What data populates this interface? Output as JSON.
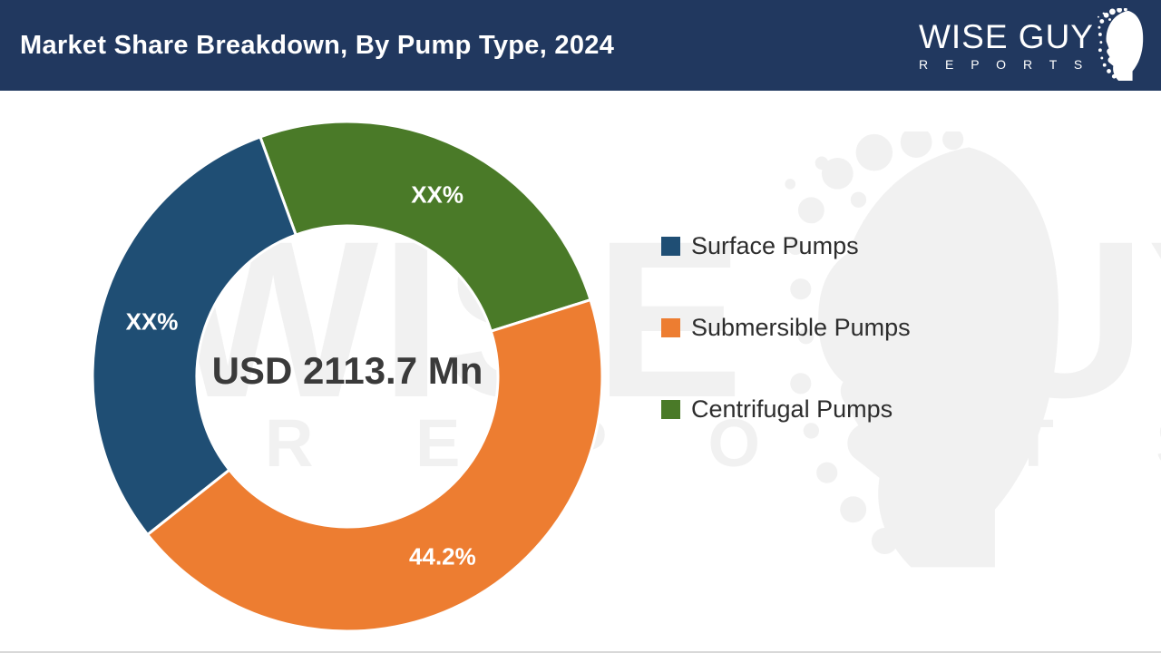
{
  "header": {
    "title": "Market Share Breakdown, By Pump Type, 2024",
    "background_color": "#21385F",
    "logo": {
      "wordmark": "WISE GUY",
      "subtitle": "R E P O R T S",
      "face_icon": "dotted-head-profile"
    }
  },
  "watermark": {
    "line1": "WISE GUY",
    "line2": "R E P O R T S",
    "color": "#F1F1F1"
  },
  "chart_data": {
    "type": "pie",
    "subtype": "donut",
    "title": "Market Share Breakdown, By Pump Type, 2024",
    "center_label": "USD 2113.7 Mn",
    "start_angle_deg": 110,
    "direction": "clockwise",
    "series": [
      {
        "name": "Centrifugal Pumps",
        "value_pct": 25.7,
        "displayed_label": "XX%",
        "color": "#4A7A28"
      },
      {
        "name": "Submersible Pumps",
        "value_pct": 44.2,
        "displayed_label": "44.2%",
        "color": "#ED7D31"
      },
      {
        "name": "Surface Pumps",
        "value_pct": 30.1,
        "displayed_label": "XX%",
        "color": "#1F4E74"
      }
    ],
    "legend": [
      {
        "label": "Surface Pumps",
        "color": "#1F4E74"
      },
      {
        "label": "Submersible Pumps",
        "color": "#ED7D31"
      },
      {
        "label": "Centrifugal Pumps",
        "color": "#4A7A28"
      }
    ],
    "legend_position": "right"
  }
}
